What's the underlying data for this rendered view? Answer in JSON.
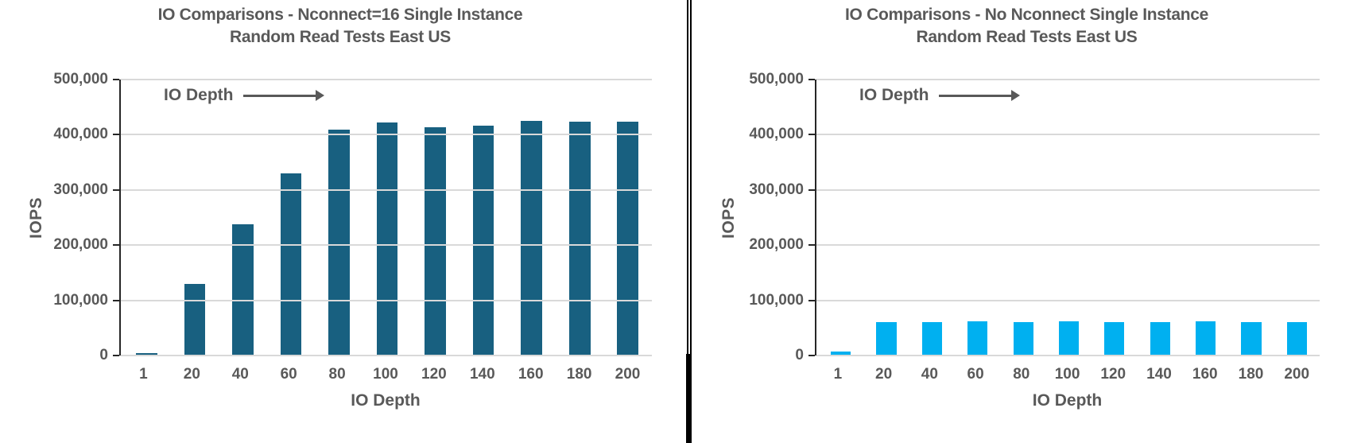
{
  "theme": {
    "background": "#ffffff",
    "title_color": "#595959",
    "label_color": "#595959",
    "grid_color": "#d9d9d9",
    "axis_color": "#262626",
    "annotation_color": "#595959",
    "divider_color": "#000000",
    "left_bar_color": "#186080",
    "right_bar_color": "#00B0F0"
  },
  "chart_data": [
    {
      "type": "bar",
      "title": "IO Comparisons -  Nconnect=16 Single Instance",
      "subtitle": "Random Read Tests East US",
      "categories": [
        "1",
        "20",
        "40",
        "60",
        "80",
        "100",
        "120",
        "140",
        "160",
        "180",
        "200"
      ],
      "values": [
        5000,
        130000,
        238000,
        330000,
        409000,
        422000,
        413000,
        416000,
        425000,
        423000,
        424000
      ],
      "xlabel": "IO Depth",
      "ylabel": "IOPS",
      "ylim": [
        0,
        500000
      ],
      "ytick_step": 100000,
      "ytick_labels": [
        "0",
        "100,000",
        "200,000",
        "300,000",
        "400,000",
        "500,000"
      ],
      "annotation": "IO Depth",
      "bar_color": "#186080",
      "grid": true,
      "legend": "none"
    },
    {
      "type": "bar",
      "title": "IO Comparisons - No Nconnect Single Instance",
      "subtitle": "Random Read Tests East US",
      "categories": [
        "1",
        "20",
        "40",
        "60",
        "80",
        "100",
        "120",
        "140",
        "160",
        "180",
        "200"
      ],
      "values": [
        7000,
        60000,
        60000,
        62000,
        60000,
        62000,
        60000,
        60000,
        62000,
        60000,
        60000
      ],
      "xlabel": "IO Depth",
      "ylabel": "IOPS",
      "ylim": [
        0,
        500000
      ],
      "ytick_step": 100000,
      "ytick_labels": [
        "0",
        "100,000",
        "200,000",
        "300,000",
        "400,000",
        "500,000"
      ],
      "annotation": "IO Depth",
      "bar_color": "#00B0F0",
      "grid": true,
      "legend": "none"
    }
  ]
}
